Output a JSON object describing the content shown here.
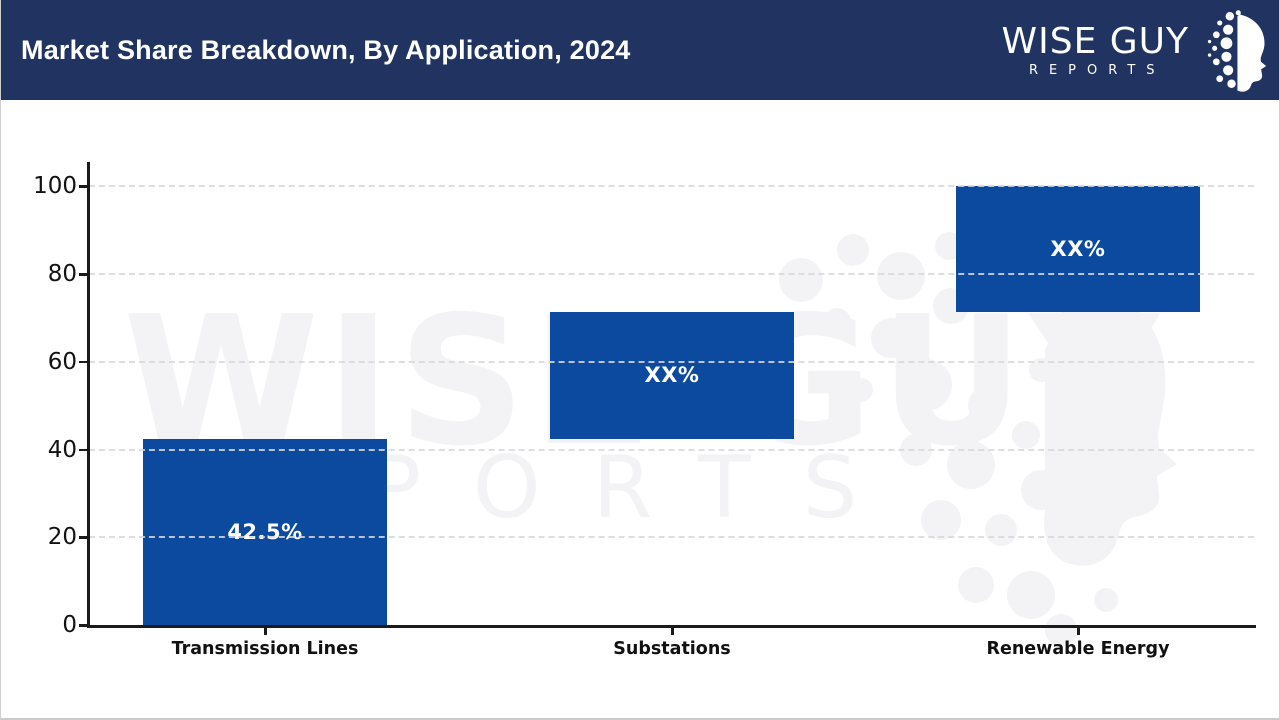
{
  "header": {
    "title": "Market Share Breakdown, By Application, 2024",
    "logo": {
      "line1": "WISE GUY",
      "line2": "REPORTS"
    }
  },
  "watermark": {
    "line1": "WISE GUY",
    "line2": "REPORTS"
  },
  "chart_data": {
    "type": "bar",
    "subtype": "waterfall",
    "title": "Market Share Breakdown, By Application, 2024",
    "categories": [
      "Transmission Lines",
      "Substations",
      "Renewable Energy"
    ],
    "segments": [
      {
        "category": "Transmission Lines",
        "start": 0,
        "end": 42.5,
        "label": "42.5%"
      },
      {
        "category": "Substations",
        "start": 42.5,
        "end": 71.25,
        "label": "XX%"
      },
      {
        "category": "Renewable Energy",
        "start": 71.25,
        "end": 100,
        "label": "XX%"
      }
    ],
    "xlabel": "",
    "ylabel": "",
    "ylim": [
      0,
      100
    ],
    "yticks": [
      0,
      20,
      40,
      60,
      80,
      100
    ],
    "grid": "horizontal-dashed",
    "legend": "none",
    "bar_color": "#0b4a9f",
    "bar_label_color": "#ffffff"
  },
  "colors": {
    "header_bg": "#213361",
    "bar": "#0b4a9f",
    "grid": "#d9d9d9",
    "axis": "#1a1a1a",
    "watermark": "#f3f3f5"
  }
}
